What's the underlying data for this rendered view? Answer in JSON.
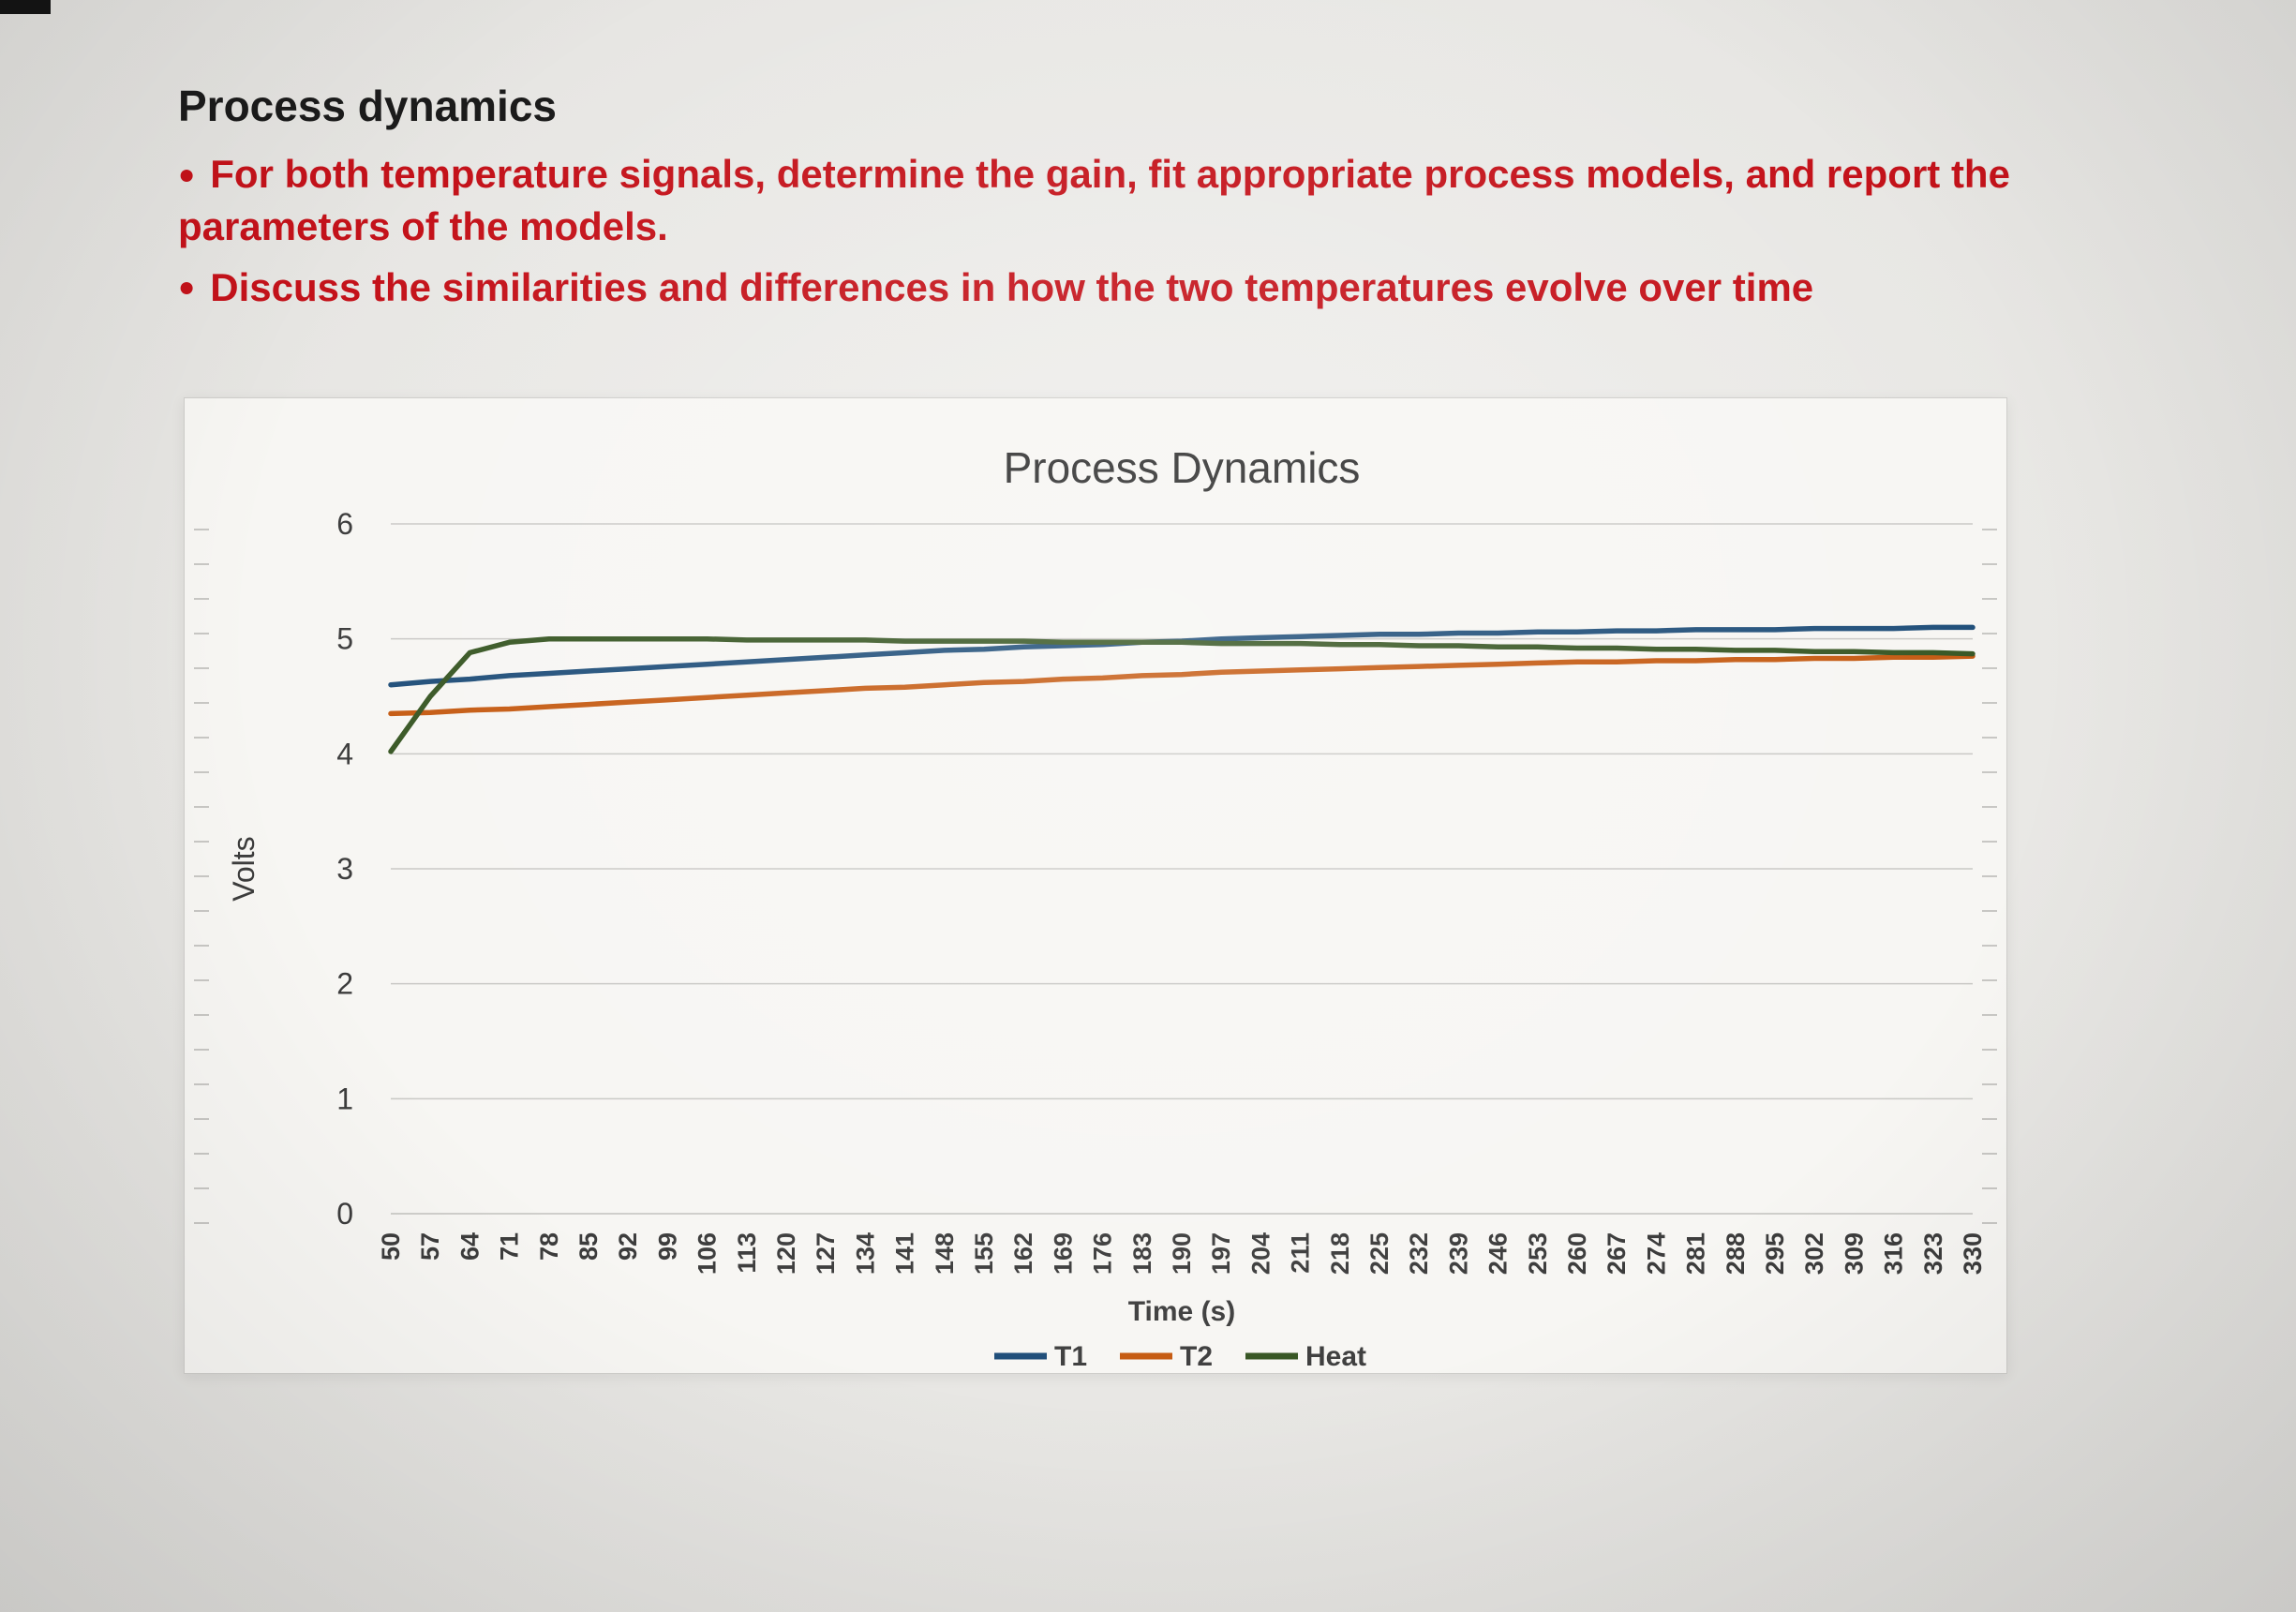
{
  "page": {
    "title": "Process dynamics",
    "bullet_color": "#c4121a",
    "bullets": [
      "For both temperature signals, determine the gain, fit appropriate process models, and report the parameters of the models.",
      "Discuss the similarities and differences in how the two temperatures evolve over time"
    ]
  },
  "chart_data": {
    "type": "line",
    "title": "Process Dynamics",
    "xlabel": "Time (s)",
    "ylabel": "Volts",
    "ylim": [
      0,
      6
    ],
    "yticks": [
      0,
      1,
      2,
      3,
      4,
      5,
      6
    ],
    "grid": true,
    "legend_position": "bottom",
    "categories": [
      50,
      57,
      64,
      71,
      78,
      85,
      92,
      99,
      106,
      113,
      120,
      127,
      134,
      141,
      148,
      155,
      162,
      169,
      176,
      183,
      190,
      197,
      204,
      211,
      218,
      225,
      232,
      239,
      246,
      253,
      260,
      267,
      274,
      281,
      288,
      295,
      302,
      309,
      316,
      323,
      330
    ],
    "series": [
      {
        "name": "T1",
        "color": "#1f4e79",
        "values": [
          4.6,
          4.63,
          4.65,
          4.68,
          4.7,
          4.72,
          4.74,
          4.76,
          4.78,
          4.8,
          4.82,
          4.84,
          4.86,
          4.88,
          4.9,
          4.91,
          4.93,
          4.94,
          4.95,
          4.97,
          4.98,
          5.0,
          5.01,
          5.02,
          5.03,
          5.04,
          5.04,
          5.05,
          5.05,
          5.06,
          5.06,
          5.07,
          5.07,
          5.08,
          5.08,
          5.08,
          5.09,
          5.09,
          5.09,
          5.1,
          5.1
        ]
      },
      {
        "name": "T2",
        "color": "#c55a11",
        "values": [
          4.35,
          4.36,
          4.38,
          4.39,
          4.41,
          4.43,
          4.45,
          4.47,
          4.49,
          4.51,
          4.53,
          4.55,
          4.57,
          4.58,
          4.6,
          4.62,
          4.63,
          4.65,
          4.66,
          4.68,
          4.69,
          4.71,
          4.72,
          4.73,
          4.74,
          4.75,
          4.76,
          4.77,
          4.78,
          4.79,
          4.8,
          4.8,
          4.81,
          4.81,
          4.82,
          4.82,
          4.83,
          4.83,
          4.84,
          4.84,
          4.85
        ]
      },
      {
        "name": "Heat",
        "color": "#375623",
        "values": [
          4.02,
          4.5,
          4.88,
          4.97,
          5.0,
          5.0,
          5.0,
          5.0,
          5.0,
          4.99,
          4.99,
          4.99,
          4.99,
          4.98,
          4.98,
          4.98,
          4.98,
          4.97,
          4.97,
          4.97,
          4.97,
          4.96,
          4.96,
          4.96,
          4.95,
          4.95,
          4.94,
          4.94,
          4.93,
          4.93,
          4.92,
          4.92,
          4.91,
          4.91,
          4.9,
          4.9,
          4.89,
          4.89,
          4.88,
          4.88,
          4.87
        ]
      }
    ]
  }
}
